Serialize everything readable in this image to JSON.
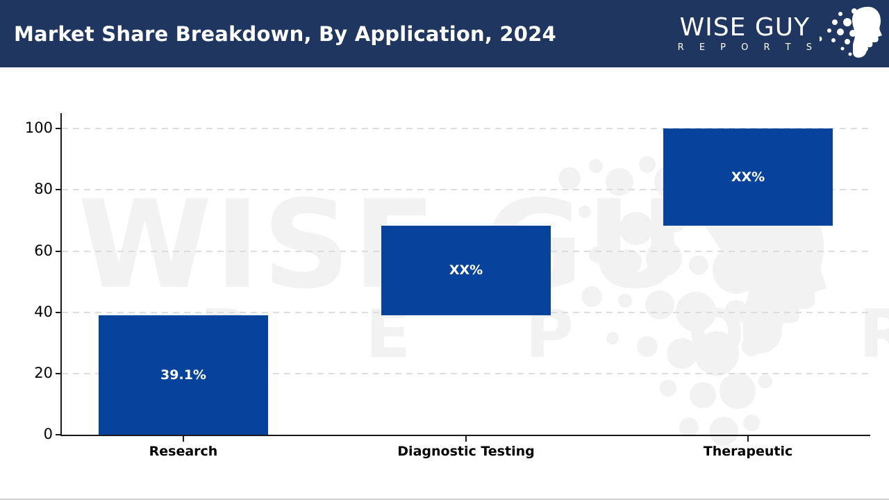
{
  "header": {
    "title": "Market Share Breakdown, By Application, 2024",
    "logo": {
      "name": "WISE GUY",
      "sub": "R E P O R T S",
      "icon": "dotted-head-profile-icon"
    }
  },
  "watermark": {
    "line1": "WISE GUY",
    "line2": "R E P O R T S",
    "icon": "dotted-head-profile-watermark"
  },
  "colors": {
    "header_bg": "#1F3660",
    "bar": "#07439C",
    "grid": "#DDDDDD",
    "axis": "#1A1A1A",
    "label": "#000000",
    "bar_label": "#FFFFFF",
    "watermark": "#F2F2F2",
    "bottom_rule": "#D2D2D2"
  },
  "chart_data": {
    "type": "bar",
    "subtype": "floating-segment-waterfall",
    "title": "Market Share Breakdown, By Application, 2024",
    "categories": [
      "Research",
      "Diagnostic Testing",
      "Therapeutic"
    ],
    "segments": [
      {
        "category": "Research",
        "from": 0,
        "to": 39.1,
        "label": "39.1%"
      },
      {
        "category": "Diagnostic Testing",
        "from": 39.1,
        "to": 68.2,
        "label": "XX%"
      },
      {
        "category": "Therapeutic",
        "from": 68.3,
        "to": 100,
        "label": "XX%"
      }
    ],
    "xlabel": "",
    "ylabel": "",
    "ylim": [
      0,
      105
    ],
    "yticks": [
      0,
      20,
      40,
      60,
      80,
      100
    ],
    "grid": "horizontal-dashed",
    "legend": "none",
    "bar_color": "#07439C",
    "value_label_color": "#FFFFFF"
  }
}
